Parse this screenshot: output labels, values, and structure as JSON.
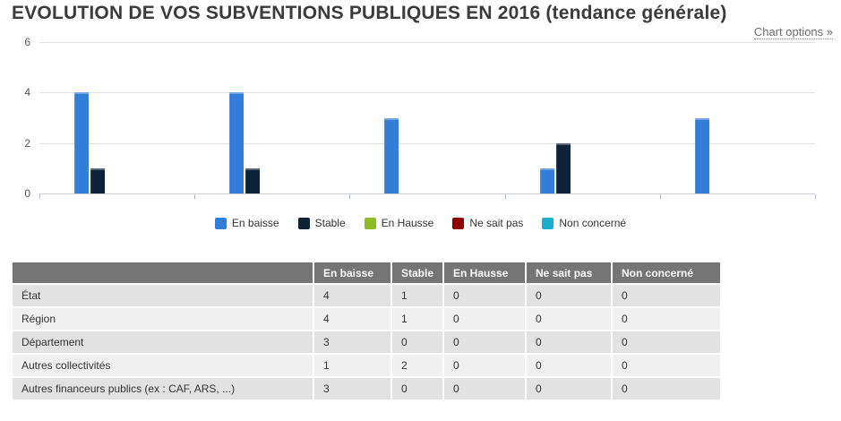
{
  "header": {
    "chart_options_label": "Chart options »"
  },
  "ui_colors": {
    "table_header_bg": "#757575",
    "table_row_odd": "#e2e2e2",
    "table_row_even": "#f0f0f0",
    "gridline": "#e2e2e2",
    "axis_line": "#c9ced4",
    "tick": "#a9bedb"
  },
  "chart_data": {
    "type": "bar",
    "title": "EVOLUTION DE VOS SUBVENTIONS PUBLIQUES EN 2016 (tendance générale)",
    "categories": [
      "État",
      "Région",
      "Département",
      "Autres collectivités",
      "Autres financeurs publics (ex : CAF, ARS, ...)"
    ],
    "series": [
      {
        "name": "En baisse",
        "color": "#337ed8",
        "values": [
          4,
          4,
          3,
          1,
          3
        ]
      },
      {
        "name": "Stable",
        "color": "#0d233a",
        "values": [
          1,
          1,
          0,
          2,
          0
        ]
      },
      {
        "name": "En Hausse",
        "color": "#8bbc21",
        "values": [
          0,
          0,
          0,
          0,
          0
        ]
      },
      {
        "name": "Ne sait pas",
        "color": "#910000",
        "values": [
          0,
          0,
          0,
          0,
          0
        ]
      },
      {
        "name": "Non concerné",
        "color": "#1aadce",
        "values": [
          0,
          0,
          0,
          0,
          0
        ]
      }
    ],
    "xlabel": "",
    "ylabel": "",
    "ylim": [
      0,
      6
    ],
    "yticks": [
      0,
      2,
      4,
      6
    ],
    "grid": true,
    "legend_position": "bottom",
    "x_tick_labels_visible": false
  },
  "table": {
    "headers": [
      "",
      "En baisse",
      "Stable",
      "En Hausse",
      "Ne sait pas",
      "Non concerné"
    ],
    "rows": [
      {
        "label": "État",
        "values": [
          4,
          1,
          0,
          0,
          0
        ]
      },
      {
        "label": "Région",
        "values": [
          4,
          1,
          0,
          0,
          0
        ]
      },
      {
        "label": "Département",
        "values": [
          3,
          0,
          0,
          0,
          0
        ]
      },
      {
        "label": "Autres collectivités",
        "values": [
          1,
          2,
          0,
          0,
          0
        ]
      },
      {
        "label": "Autres financeurs publics (ex : CAF, ARS, ...)",
        "values": [
          3,
          0,
          0,
          0,
          0
        ]
      }
    ]
  }
}
